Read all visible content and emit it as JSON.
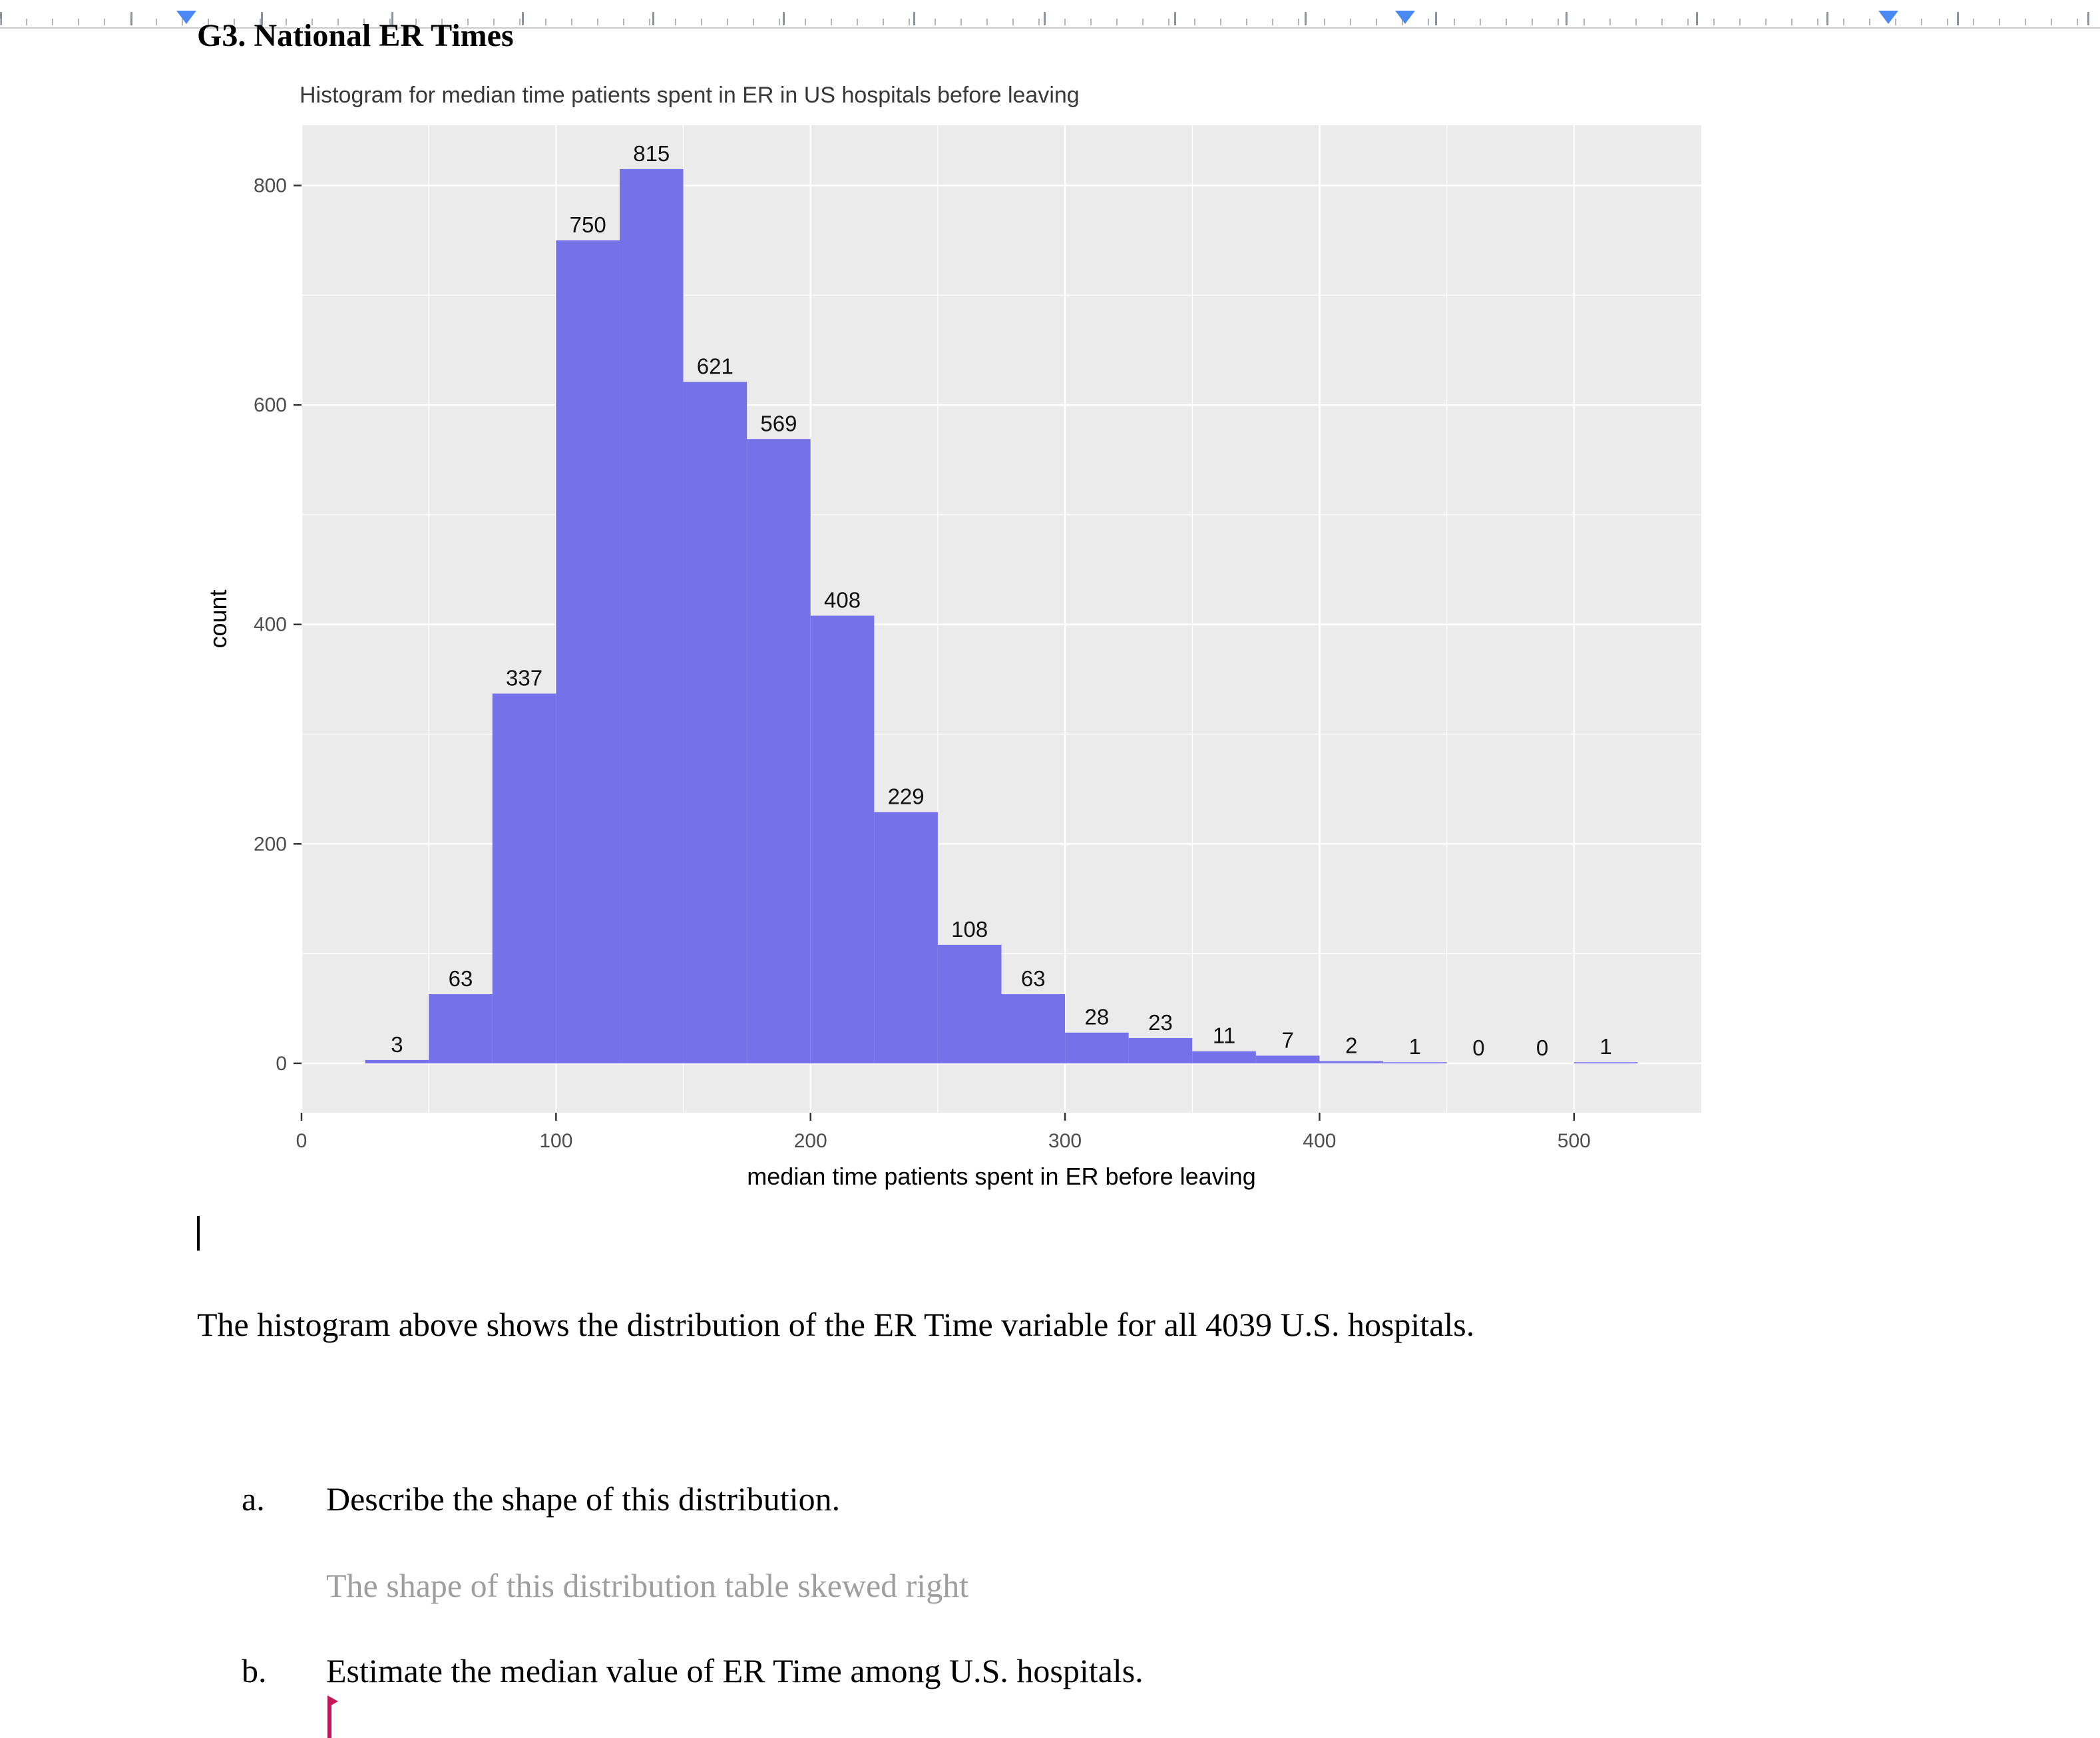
{
  "ruler": {
    "markers": [
      "left-indent",
      "center-tab",
      "right-indent"
    ]
  },
  "document": {
    "heading": "G3. National ER Times",
    "paragraph": "The histogram above shows the distribution of the ER Time variable for all 4039 U.S. hospitals.",
    "questions": [
      {
        "marker": "a.",
        "text": "Describe the shape of this distribution.",
        "answer": "The shape of this distribution table skewed right"
      },
      {
        "marker": "b.",
        "text": "Estimate the median value of ER Time among U.S. hospitals."
      }
    ]
  },
  "chart_data": {
    "type": "bar",
    "title": "Histogram for median time patients spent in ER in US hospitals before leaving",
    "xlabel": "median time patients spent in ER before leaving",
    "ylabel": "count",
    "bin_start": 25,
    "bin_width": 25,
    "bin_edges": [
      25,
      50,
      75,
      100,
      125,
      150,
      175,
      200,
      225,
      250,
      275,
      300,
      325,
      350,
      375,
      400,
      425,
      450,
      475,
      500,
      525
    ],
    "values": [
      3,
      63,
      337,
      750,
      815,
      621,
      569,
      408,
      229,
      108,
      63,
      28,
      23,
      11,
      7,
      2,
      1,
      0,
      0,
      1
    ],
    "x_ticks": [
      0,
      100,
      200,
      300,
      400,
      500
    ],
    "y_ticks": [
      0,
      200,
      400,
      600,
      800
    ],
    "xlim": [
      0,
      550
    ],
    "ylim": [
      -45,
      855
    ],
    "grid": "on",
    "legend": "none",
    "bar_color": "#7571E8",
    "panel_bg": "#EBEBEB"
  },
  "colors": {
    "ruler_marker_blue": "#4A89F3",
    "answer_gray": "#9E9E9E",
    "collab_cursor_magenta": "#C2185B",
    "text_cursor_black": "#000000"
  }
}
